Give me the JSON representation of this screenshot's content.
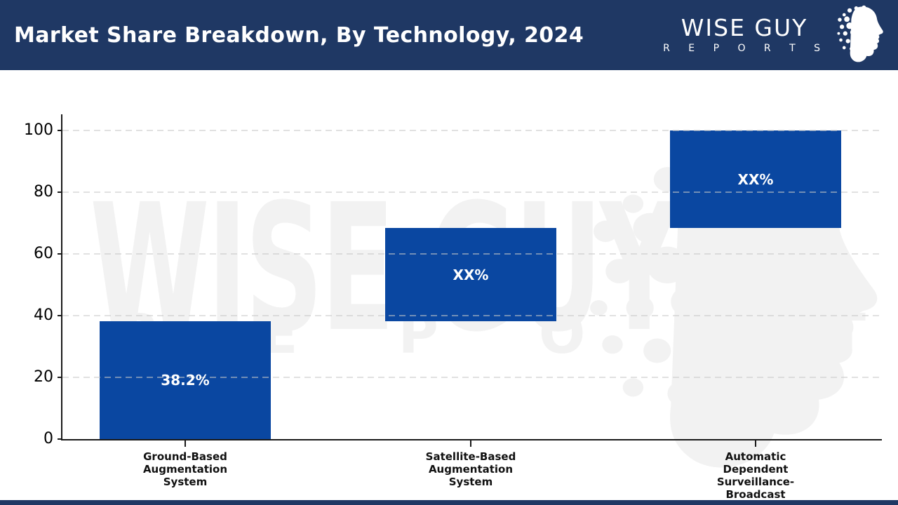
{
  "header": {
    "title": "Market Share Breakdown, By Technology, 2024",
    "logo": {
      "line1": "WISE GUY",
      "line2": "R E P O R T S"
    }
  },
  "watermark": {
    "line1": "WISE GUY",
    "line2": "R E P O R T S"
  },
  "chart_data": {
    "type": "bar",
    "subtype": "floating-segment-breakdown",
    "title": "Market Share Breakdown, By Technology, 2024",
    "categories": [
      {
        "name": "Ground-Based Augmentation System",
        "lines": [
          "Ground-Based",
          "Augmentation",
          "System"
        ]
      },
      {
        "name": "Satellite-Based Augmentation System",
        "lines": [
          "Satellite-Based",
          "Augmentation",
          "System"
        ]
      },
      {
        "name": "Automatic Dependent Surveillance-Broadcast",
        "lines": [
          "Automatic",
          "Dependent",
          "Surveillance-",
          "Broadcast"
        ]
      }
    ],
    "segments": [
      {
        "from": 0,
        "to": 38.2,
        "label": "38.2%"
      },
      {
        "from": 38.2,
        "to": 68.3,
        "label": "XX%"
      },
      {
        "from": 68.3,
        "to": 100,
        "label": "XX%"
      }
    ],
    "yticks": [
      0,
      20,
      40,
      60,
      80,
      100
    ],
    "ylim": [
      0,
      105
    ],
    "grid": "dashed-horizontal",
    "legend": "none",
    "colors": {
      "bar": "#0a47a1",
      "bar_label": "#ffffff",
      "grid": "#c8c8c8",
      "axis": "#1a1a1a",
      "header_bg": "#1f3864",
      "watermark": "#f2f2f2"
    }
  }
}
